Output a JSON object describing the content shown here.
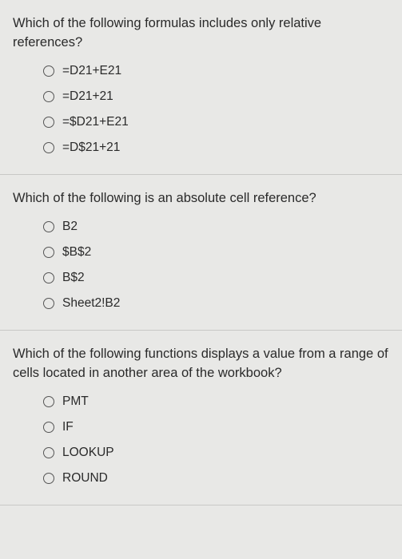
{
  "questions": [
    {
      "prompt": "Which of the following formulas includes only relative references?",
      "options": [
        "=D21+E21",
        "=D21+21",
        "=$D21+E21",
        "=D$21+21"
      ]
    },
    {
      "prompt": "Which of the following is an absolute cell reference?",
      "options": [
        "B2",
        "$B$2",
        "B$2",
        "Sheet2!B2"
      ]
    },
    {
      "prompt": "Which of the following functions displays a value from a range of cells located in another area of the workbook?",
      "options": [
        "PMT",
        "IF",
        "LOOKUP",
        "ROUND"
      ]
    }
  ]
}
